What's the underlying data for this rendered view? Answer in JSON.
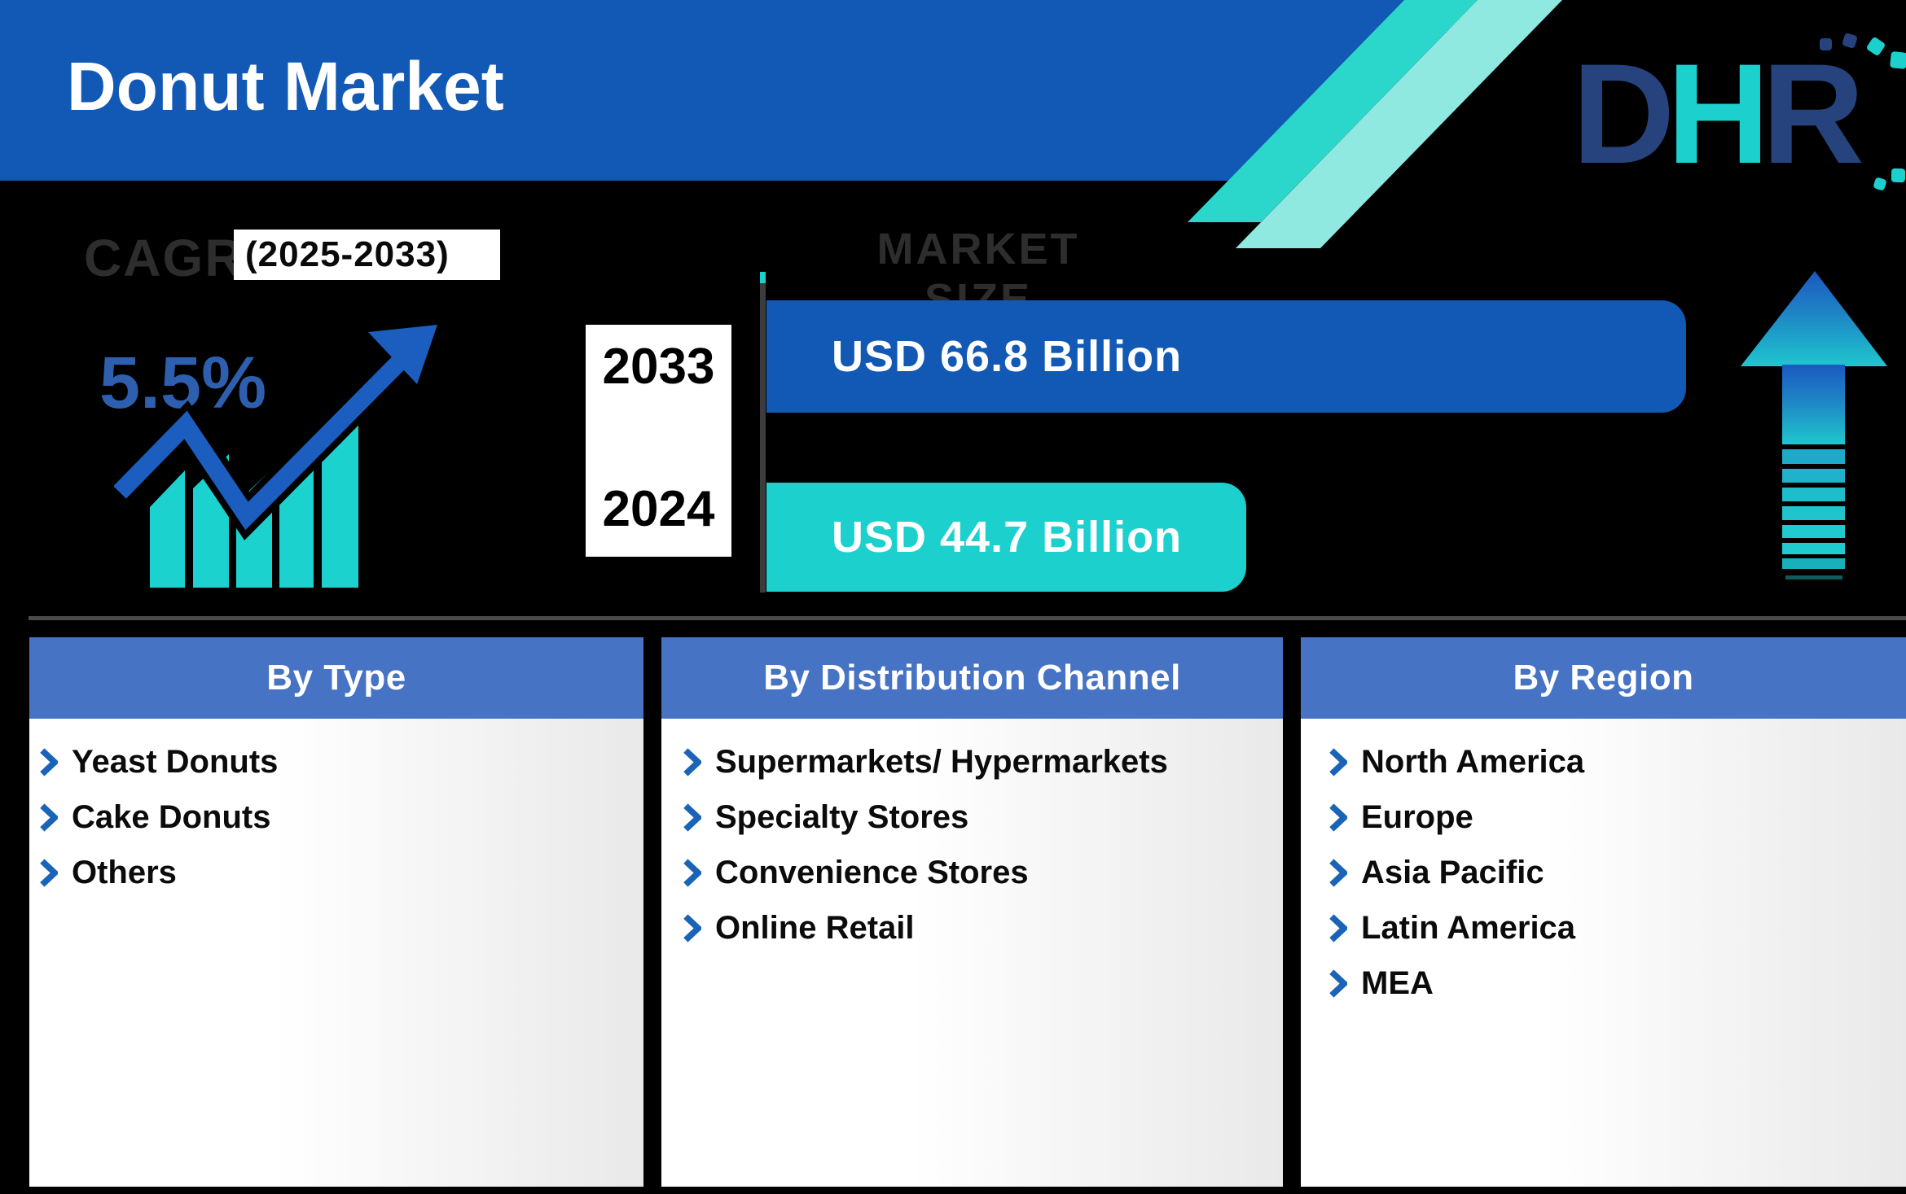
{
  "header": {
    "title": "Donut Market"
  },
  "logo": {
    "letters": [
      {
        "char": "D",
        "color": "#26437d"
      },
      {
        "char": "H",
        "color": "#1bd0cd"
      },
      {
        "char": "R",
        "color": "#26437d"
      }
    ]
  },
  "cagr": {
    "label": "CAGR",
    "period": "(2025-2033)",
    "value": "5.5%"
  },
  "market_size": {
    "title": "MARKET SIZE",
    "rows": [
      {
        "year": "2033",
        "value_label": "USD 66.8 Billion",
        "value": 66.8,
        "color": "#1159b4"
      },
      {
        "year": "2024",
        "value_label": "USD 44.7 Billion",
        "value": 44.7,
        "color": "#1bd0cd"
      }
    ]
  },
  "segments": [
    {
      "title": "By Type",
      "items": [
        "Yeast Donuts",
        "Cake Donuts",
        "Others"
      ]
    },
    {
      "title": "By Distribution Channel",
      "items": [
        "Supermarkets/ Hypermarkets",
        "Specialty Stores",
        "Convenience Stores",
        "Online Retail"
      ]
    },
    {
      "title": "By Region",
      "items": [
        "North America",
        "Europe",
        "Asia Pacific",
        "Latin America",
        "MEA"
      ]
    }
  ],
  "colors": {
    "header_blue": "#1159b4",
    "column_header_blue": "#4673c4",
    "teal": "#1bd0cd",
    "stripe_teal": "#2bd7ca",
    "stripe_light_teal": "#90e9e1",
    "cagr_value_blue": "#2e5fae",
    "zigzag_blue": "#1b5ec0",
    "dark_label_gray": "#2d2d2d",
    "logo_navy": "#26437d",
    "background": "#000000"
  },
  "chart_data": {
    "type": "bar",
    "orientation": "horizontal",
    "title": "MARKET SIZE",
    "categories": [
      "2033",
      "2024"
    ],
    "values": [
      66.8,
      44.7
    ],
    "unit": "USD Billion",
    "data_labels": [
      "USD 66.8 Billion",
      "USD 44.7 Billion"
    ],
    "cagr_percent": 5.5,
    "cagr_period": "2025-2033",
    "series_colors": [
      "#1159b4",
      "#1bd0cd"
    ],
    "xlim": [
      0,
      70
    ],
    "grid": false,
    "legend": false
  }
}
